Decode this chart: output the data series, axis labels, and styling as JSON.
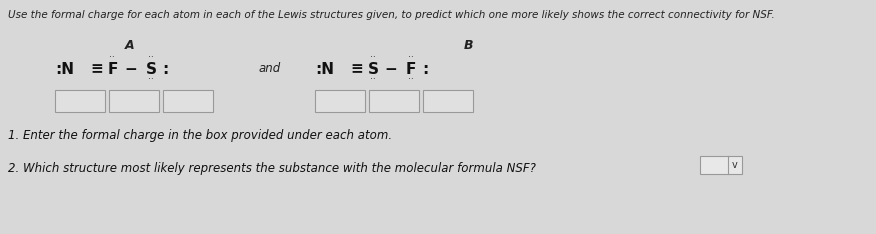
{
  "bg_color": "#d8d8d8",
  "title_text": "Use the formal charge for each atom in each of the Lewis structures given, to predict which one more likely shows the correct connectivity for NSF.",
  "title_fontsize": 7.5,
  "label_A": "A",
  "label_B": "B",
  "and_text": "and",
  "question1": "1. Enter the formal charge in the box provided under each atom.",
  "question2": "2. Which structure most likely represents the substance with the molecular formula NSF?",
  "q_fontsize": 8.5,
  "struct_fontsize": 11,
  "dot_fontsize": 6.5
}
